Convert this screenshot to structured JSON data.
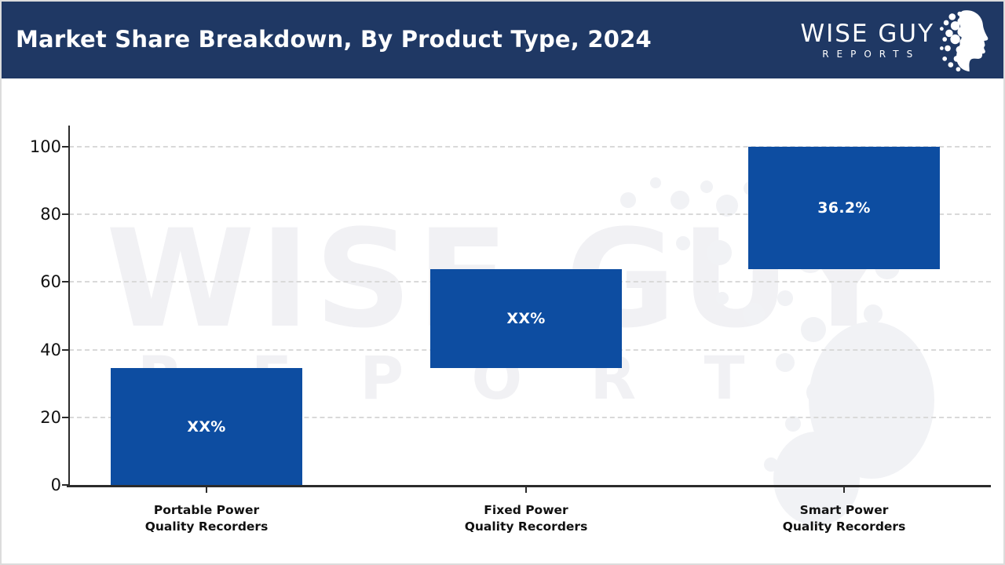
{
  "header": {
    "title": "Market Share Breakdown, By Product Type, 2024",
    "brand": {
      "name_line1": "WISE GUY",
      "name_line2": "REPORTS"
    }
  },
  "watermark": {
    "line1": "WISE GUY",
    "line2": "R E P O R T S"
  },
  "chart_data": {
    "type": "bar",
    "subtype": "segmented-range-bars",
    "title": "Market Share Breakdown, By Product Type, 2024",
    "categories": [
      "Portable Power\nQuality Recorders",
      "Fixed Power\nQuality Recorders",
      "Smart Power\nQuality Recorders"
    ],
    "bars": [
      {
        "category": "Portable Power Quality Recorders",
        "from": 0,
        "to": 34.5,
        "label": "XX%"
      },
      {
        "category": "Fixed Power Quality Recorders",
        "from": 34.5,
        "to": 63.8,
        "label": "XX%"
      },
      {
        "category": "Smart Power Quality Recorders",
        "from": 63.8,
        "to": 100,
        "label": "36.2%",
        "value": 36.2
      }
    ],
    "xlabel": "",
    "ylabel": "",
    "ylim": [
      0,
      100
    ],
    "y_ticks": [
      0,
      20,
      40,
      60,
      80,
      100
    ],
    "grid": "horizontal-dashed",
    "legend": "none",
    "colors": {
      "bar": "#0d4da1",
      "bar_label": "#ffffff",
      "axis": "#2b2b2b",
      "grid": "#d9d9d9",
      "header_bg": "#1f3864",
      "header_text": "#ffffff",
      "watermark": "#f1f1f4"
    }
  }
}
